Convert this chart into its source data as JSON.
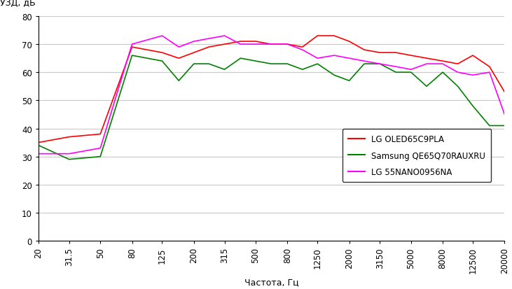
{
  "freqs": [
    20,
    31.5,
    50,
    80,
    125,
    160,
    200,
    250,
    315,
    400,
    500,
    630,
    800,
    1000,
    1250,
    1600,
    2000,
    2500,
    3150,
    4000,
    5000,
    6300,
    8000,
    10000,
    12500,
    16000,
    20000
  ],
  "red": [
    35,
    37,
    38,
    69,
    67,
    65,
    67,
    69,
    70,
    71,
    71,
    70,
    70,
    69,
    73,
    73,
    71,
    68,
    67,
    67,
    66,
    65,
    64,
    63,
    66,
    62,
    53
  ],
  "green": [
    34,
    29,
    30,
    66,
    64,
    57,
    63,
    63,
    61,
    65,
    64,
    63,
    63,
    61,
    63,
    59,
    57,
    63,
    63,
    60,
    60,
    55,
    60,
    55,
    48,
    41,
    41
  ],
  "magenta": [
    31,
    31,
    33,
    70,
    73,
    69,
    71,
    72,
    73,
    70,
    70,
    70,
    70,
    68,
    65,
    66,
    65,
    64,
    63,
    62,
    61,
    63,
    63,
    60,
    59,
    60,
    45
  ],
  "tick_labels": [
    "20",
    "31.5",
    "50",
    "80",
    "125",
    "200",
    "315",
    "500",
    "800",
    "1250",
    "2000",
    "3150",
    "5000",
    "8000",
    "12500",
    "20000"
  ],
  "tick_positions": [
    20,
    31.5,
    50,
    80,
    125,
    200,
    315,
    500,
    800,
    1250,
    2000,
    3150,
    5000,
    8000,
    12500,
    20000
  ],
  "ylabel": "УЗД, дБ",
  "xlabel": "Частота, Гц",
  "ylim": [
    0,
    80
  ],
  "yticks": [
    0,
    10,
    20,
    30,
    40,
    50,
    60,
    70,
    80
  ],
  "legend": [
    "LG OLED65C9PLA",
    "Samsung QE65Q70RAUXRU",
    "LG 55NANO0956NA"
  ],
  "colors": [
    "#ff0000",
    "#008000",
    "#ff00ff"
  ],
  "bg_color": "#ffffff",
  "grid_color": "#c8c8c8"
}
